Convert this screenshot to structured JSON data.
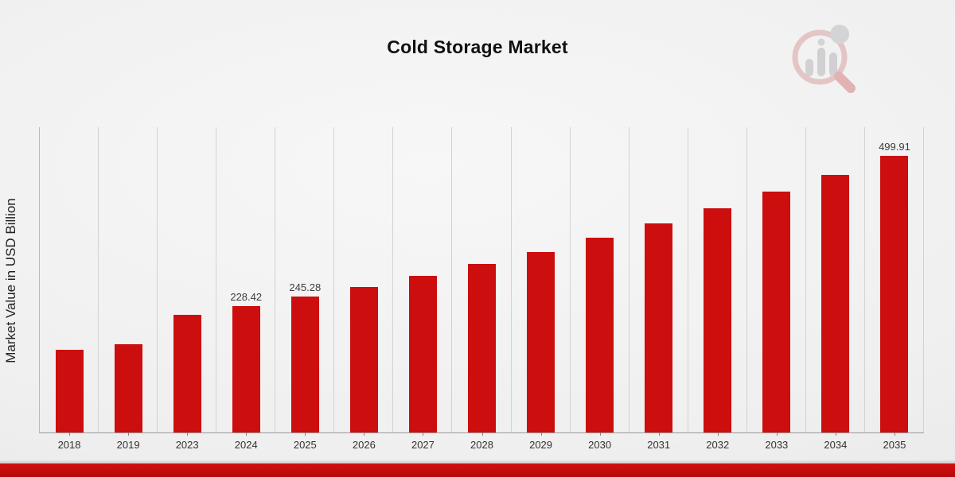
{
  "page": {
    "title": "Cold Storage Market"
  },
  "chart_data": {
    "type": "bar",
    "title": "Cold Storage Market",
    "xlabel": "",
    "ylabel": "Market Value in USD Billion",
    "categories": [
      "2018",
      "2019",
      "2023",
      "2024",
      "2025",
      "2026",
      "2027",
      "2028",
      "2029",
      "2030",
      "2031",
      "2032",
      "2033",
      "2034",
      "2035"
    ],
    "values": [
      149.2,
      159.4,
      212.5,
      228.42,
      245.28,
      262.8,
      283.0,
      304.4,
      326.0,
      351.8,
      377.7,
      405.0,
      435.1,
      465.3,
      499.91
    ],
    "data_labels": {
      "2024": "228.42",
      "2025": "245.28",
      "2035": "499.91"
    },
    "bar_color": "#cc0e0e",
    "ylim": [
      0,
      552
    ],
    "grid": "vertical-category-boundaries",
    "legend": "none"
  },
  "watermark": {
    "icon": "magnifier-bar-chart-logo"
  },
  "footer": {
    "bar_color": "#c00d0d"
  }
}
